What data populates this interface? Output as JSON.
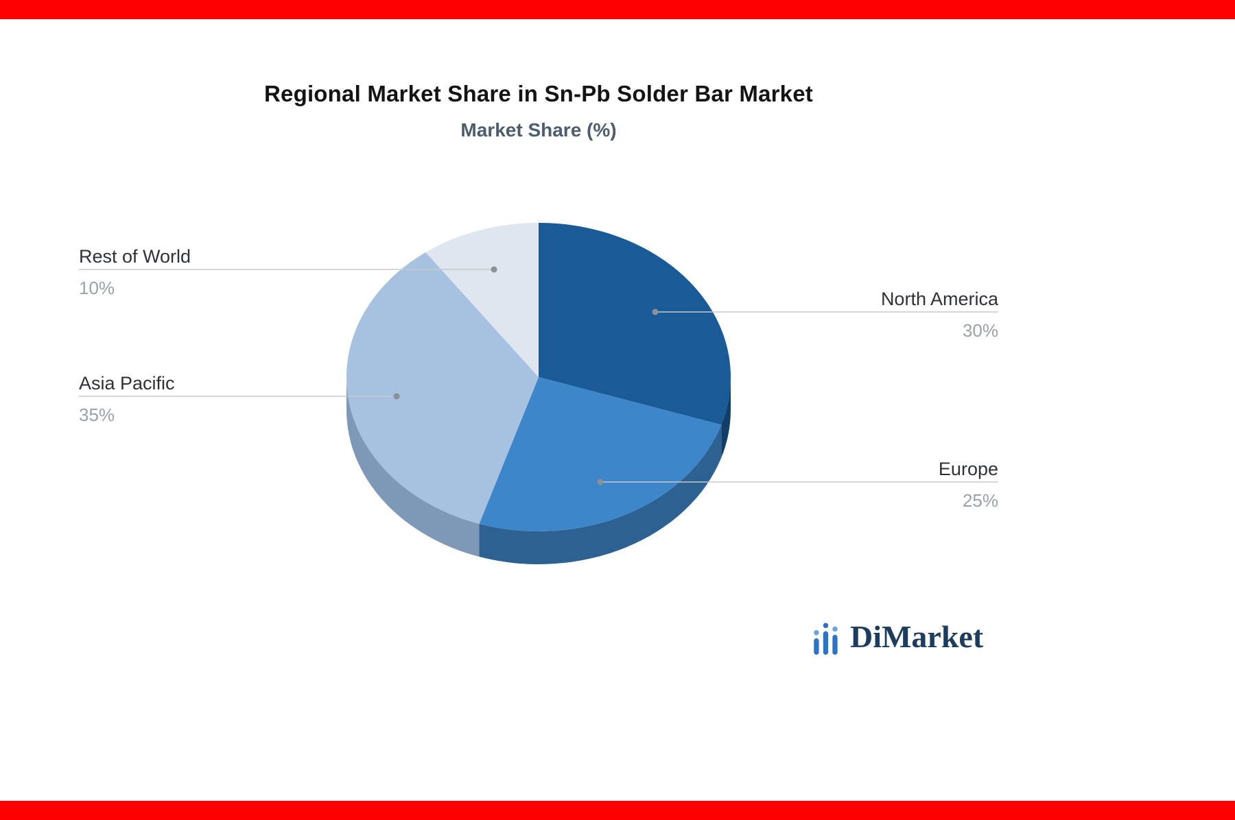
{
  "page": {
    "brand": "DiMarket"
  },
  "chart_data": {
    "type": "pie",
    "title": "Regional Market Share in Sn-Pb Solder Bar Market",
    "subtitle": "Market Share (%)",
    "unit": "%",
    "start_angle_deg": 0,
    "direction": "clockwise",
    "legend_position": "callout-labels",
    "effect": "3d-depth",
    "slices": [
      {
        "label": "North America",
        "value": 30,
        "percent_label": "30%",
        "color": "#1A5A96",
        "side_color": "#123F69"
      },
      {
        "label": "Europe",
        "value": 25,
        "percent_label": "25%",
        "color": "#3E86CA",
        "side_color": "#2C6191"
      },
      {
        "label": "Asia Pacific",
        "value": 35,
        "percent_label": "35%",
        "color": "#A7C2E1",
        "side_color": "#7E98B8"
      },
      {
        "label": "Rest of World",
        "value": 10,
        "percent_label": "10%",
        "color": "#DFE6F0",
        "side_color": "#A9B4C6"
      }
    ],
    "label_color": "#2e3135",
    "percent_color": "#9aa1a9",
    "leader_line_color": "#c6c9cd"
  }
}
